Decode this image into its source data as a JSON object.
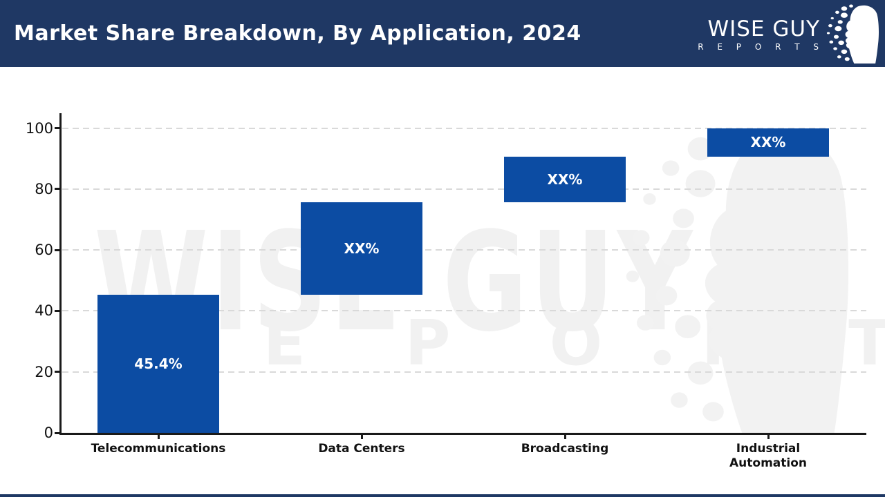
{
  "header": {
    "title": "Market Share Breakdown, By Application, 2024",
    "logo_line1": "WISE GUY",
    "logo_line2": "R E P O R T S"
  },
  "watermark": {
    "line1": "WISE GUY",
    "line2": "R E P O R T S"
  },
  "chart_data": {
    "type": "bar",
    "subtype": "waterfall",
    "title": "Market Share Breakdown, By Application, 2024",
    "categories": [
      "Telecommunications",
      "Data Centers",
      "Broadcasting",
      "Industrial\nAutomation"
    ],
    "segments": [
      {
        "category": "Telecommunications",
        "start": 0,
        "end": 45.4,
        "label": "45.4%"
      },
      {
        "category": "Data Centers",
        "start": 45.4,
        "end": 75.7,
        "label": "XX%"
      },
      {
        "category": "Broadcasting",
        "start": 75.7,
        "end": 90.6,
        "label": "XX%"
      },
      {
        "category": "Industrial Automation",
        "start": 90.6,
        "end": 100,
        "label": "XX%"
      }
    ],
    "yticks": [
      0,
      20,
      40,
      60,
      80,
      100
    ],
    "ylim": [
      0,
      104.5
    ],
    "xlabel": "",
    "ylabel": "",
    "grid": "horizontal-dashed",
    "legend": "none"
  },
  "colors": {
    "header_bg": "#1f3864",
    "bar": "#0c4ca3",
    "bar_label": "#ffffff",
    "grid": "#d9d9d9",
    "axis": "#1a1a1a",
    "tick_text": "#111111",
    "watermark": "#f1f1f1"
  }
}
